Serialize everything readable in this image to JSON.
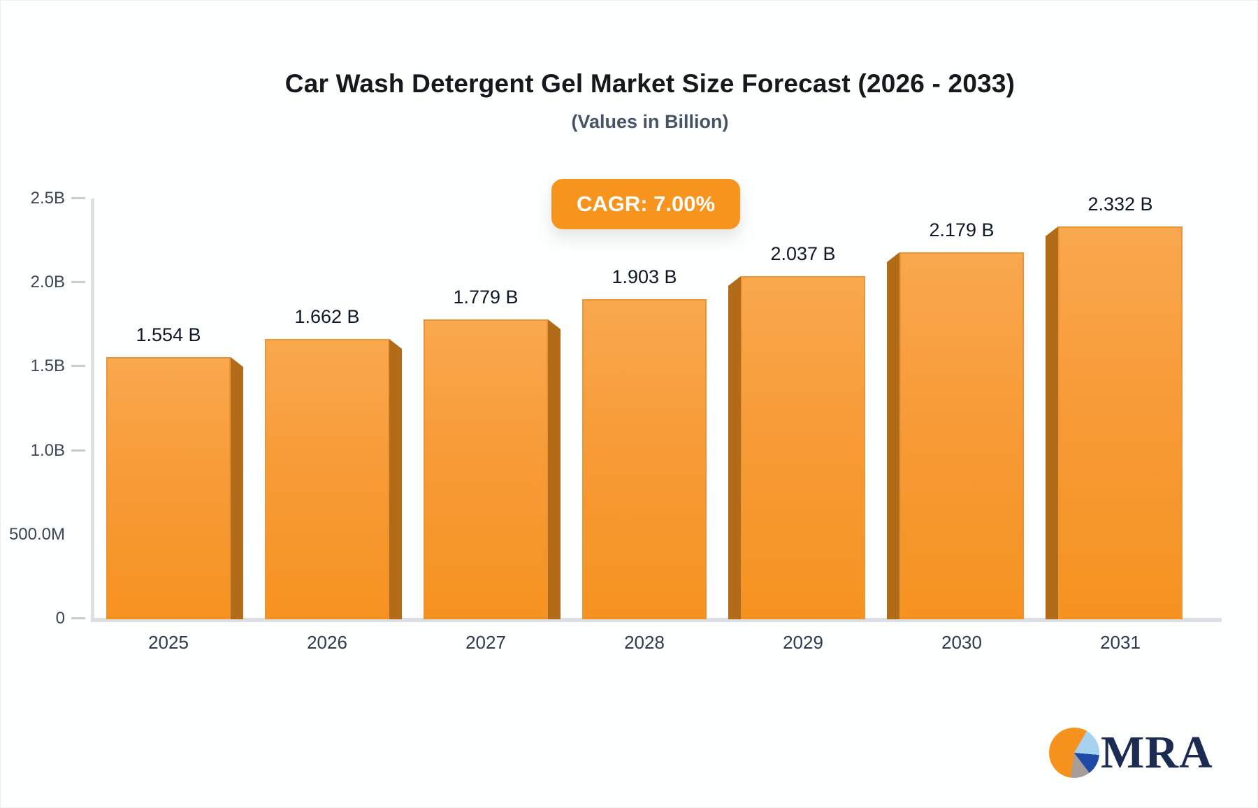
{
  "header": {
    "title": "Car Wash Detergent Gel Market Size Forecast (2026 - 2033)",
    "subtitle": "(Values in Billion)"
  },
  "badge": {
    "label": "CAGR: 7.00%",
    "bg": "#f7941e",
    "text_color": "#ffffff"
  },
  "chart_data": {
    "type": "bar",
    "title": "Car Wash Detergent Gel Market Size Forecast (2026 - 2033)",
    "subtitle": "(Values in Billion)",
    "cagr": "7.00%",
    "categories": [
      "2025",
      "2026",
      "2027",
      "2028",
      "2029",
      "2030",
      "2031"
    ],
    "values": [
      1.554,
      1.662,
      1.779,
      1.903,
      2.037,
      2.179,
      2.332
    ],
    "value_labels": [
      "1.554 B",
      "1.662 B",
      "1.779 B",
      "1.903 B",
      "2.037 B",
      "2.179 B",
      "2.332 B"
    ],
    "unit": "B",
    "ylim": [
      0,
      2.5
    ],
    "yticks": [
      {
        "label": "2.5B",
        "value": 2.5,
        "tick": true
      },
      {
        "label": "2.0B",
        "value": 2.0,
        "tick": true
      },
      {
        "label": "1.5B",
        "value": 1.5,
        "tick": true
      },
      {
        "label": "1.0B",
        "value": 1.0,
        "tick": true
      },
      {
        "label": "500.0M",
        "value": 0.5,
        "tick": false
      },
      {
        "label": "0",
        "value": 0,
        "tick": true
      }
    ],
    "grid": false,
    "legend": "none",
    "bar_color_top": "#f9a84e",
    "bar_color_bottom": "#f69220",
    "bar_side_color": "#b26c17",
    "axis_line_color": "#dbdee2",
    "tick_color": "#c7ccd4"
  },
  "logo": {
    "text": "MRA",
    "text_color": "#1b2b52",
    "pie_orange": "#f6921e",
    "pie_lightblue": "#a6d2f0",
    "pie_blue": "#1e49a6",
    "pie_gray": "#a89c98"
  }
}
